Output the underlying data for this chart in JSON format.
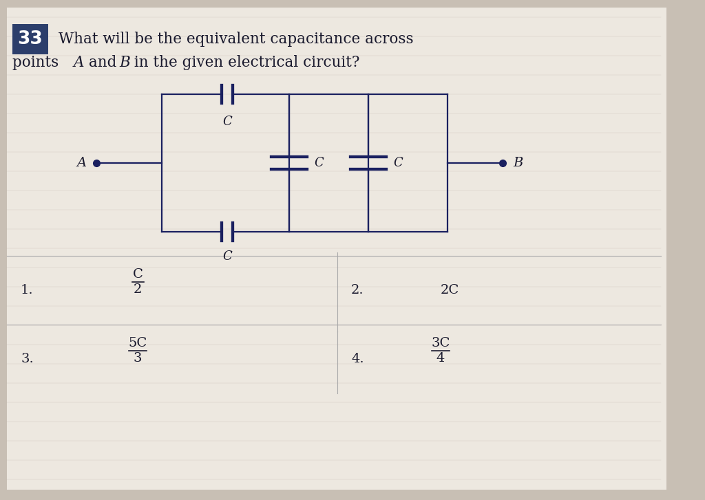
{
  "bg_color": "#c8bfb4",
  "paper_color": "#ede8e0",
  "title_num": "33",
  "title_num_bg": "#2c3e6b",
  "title_num_color": "#ffffff",
  "q_line1": "What will be the equivalent capacitance across",
  "q_line2a": "points ",
  "q_line2b": "A",
  "q_line2c": " and ",
  "q_line2d": "B",
  "q_line2e": " in the given electrical circuit?",
  "text_color": "#1a1a2e",
  "circuit_color": "#1a2060",
  "lw": 1.6,
  "opt1_num": "1.",
  "opt1_frac_n": "C",
  "opt1_frac_d": "2",
  "opt2_num": "2.",
  "opt2_val": "2C",
  "opt3_num": "3.",
  "opt3_frac_n": "5C",
  "opt3_frac_d": "3",
  "opt4_num": "4.",
  "opt4_frac_n": "3C",
  "opt4_frac_d": "4",
  "fig_width": 10.24,
  "fig_height": 7.27,
  "dpi": 100
}
